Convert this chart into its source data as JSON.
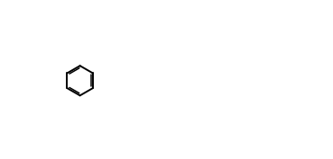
{
  "bg_color": "#ffffff",
  "bond_color": "#000000",
  "text_color": "#000000",
  "highlight_color": "#cc6600",
  "figsize": [
    3.69,
    1.77
  ],
  "dpi": 100
}
